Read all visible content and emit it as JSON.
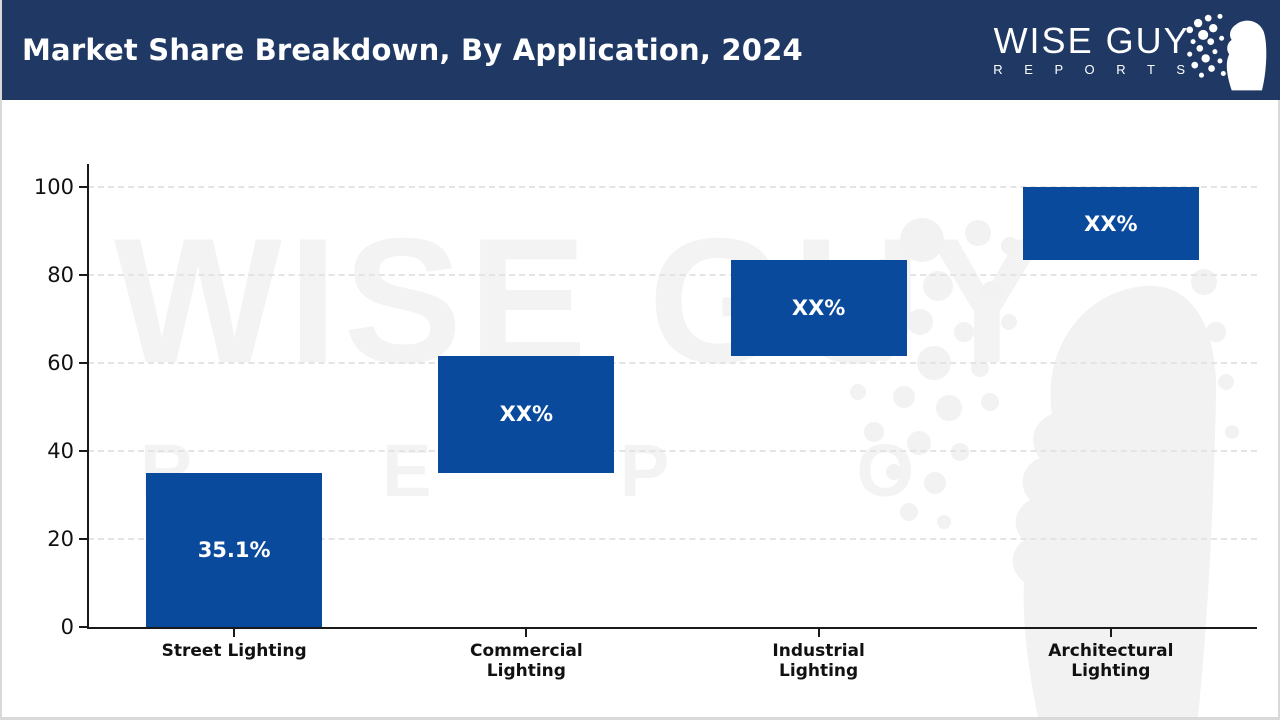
{
  "colors": {
    "header_bg": "#1f3864",
    "bar": "#0a4a9c",
    "bar_label": "#ffffff",
    "watermark": "#f3f3f3",
    "grid": "#e4e4e4",
    "axis": "#1a1a1a"
  },
  "header": {
    "title": "Market Share Breakdown, By Application, 2024",
    "logo": {
      "name_line": "WISE GUY",
      "sub_line": "R E P O R T S"
    }
  },
  "watermark": {
    "name_line": "WISE GUY",
    "sub_line": "R E P O R T S"
  },
  "chart_data": {
    "type": "bar",
    "subtype": "waterfall",
    "title": "Market Share Breakdown, By Application, 2024",
    "xlabel": "",
    "ylabel": "",
    "ylim": [
      0,
      105
    ],
    "yticks": [
      0,
      20,
      40,
      60,
      80,
      100
    ],
    "grid": "horizontal-dashed",
    "legend": "none",
    "categories": [
      "Street Lighting",
      "Commercial\nLighting",
      "Industrial\nLighting",
      "Architectural\nLighting"
    ],
    "segments": [
      {
        "category": "Street Lighting",
        "start": 0,
        "end": 35.1,
        "label": "35.1%"
      },
      {
        "category": "Commercial Lighting",
        "start": 35.1,
        "end": 61.6,
        "label": "XX%"
      },
      {
        "category": "Industrial Lighting",
        "start": 61.6,
        "end": 83.4,
        "label": "XX%"
      },
      {
        "category": "Architectural Lighting",
        "start": 83.4,
        "end": 100,
        "label": "XX%"
      }
    ]
  }
}
